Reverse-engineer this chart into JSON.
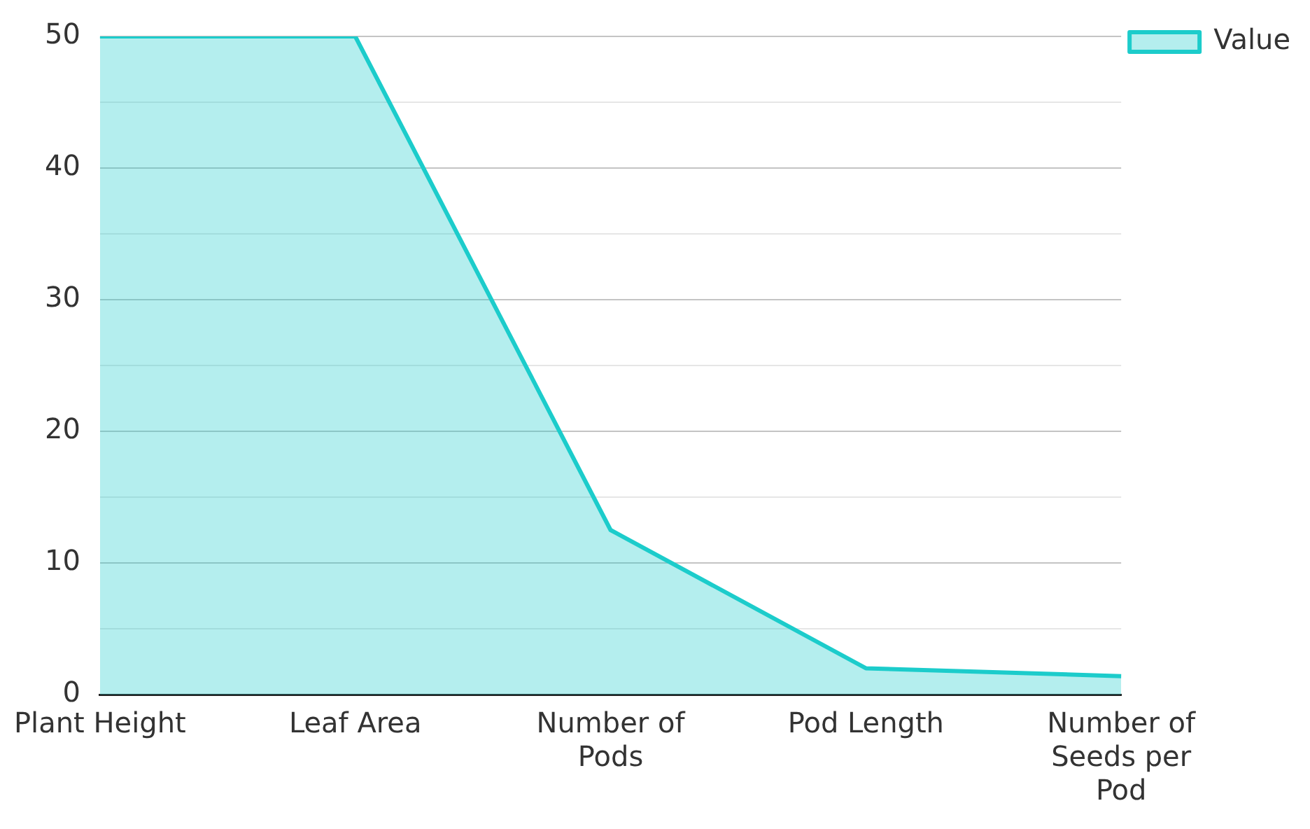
{
  "chart_data": {
    "type": "area",
    "categories": [
      "Plant Height",
      "Leaf Area",
      "Number of Pods",
      "Pod Length",
      "Number of Seeds per Pod"
    ],
    "series": [
      {
        "name": "Value",
        "color": "#1ccccb",
        "values": [
          50,
          50,
          12.5,
          2,
          1.4
        ]
      }
    ],
    "ylim": [
      0,
      50
    ],
    "yticks": [
      0,
      {
        "value": 5,
        "label": null
      },
      10,
      {
        "value": 15,
        "label": null
      },
      20,
      {
        "value": 25,
        "label": null
      },
      30,
      {
        "value": 35,
        "label": null
      },
      40,
      {
        "value": 45,
        "label": null
      },
      50
    ],
    "grid": "y",
    "legend": "top right"
  }
}
